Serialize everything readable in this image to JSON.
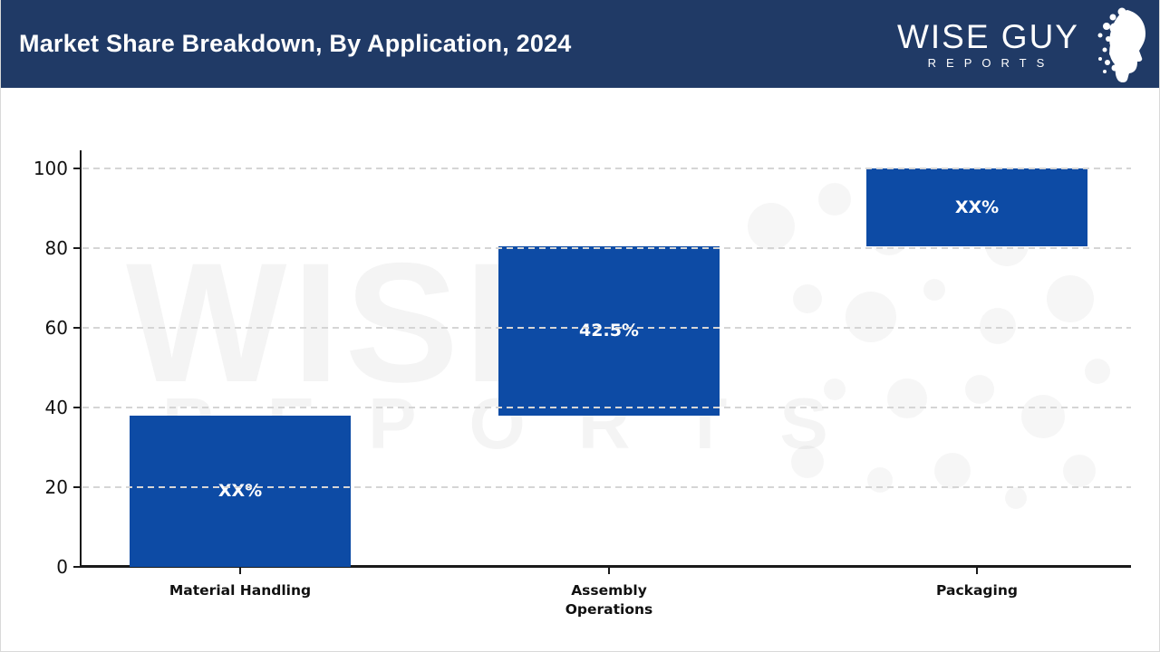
{
  "header": {
    "title": "Market Share Breakdown, By Application, 2024",
    "logo": {
      "primary": "WISE GUY",
      "secondary": "REPORTS"
    },
    "bg_color": "#203a66"
  },
  "watermark": {
    "primary": "WISE",
    "secondary": "REPORTS"
  },
  "chart_data": {
    "type": "bar",
    "subtype": "floating-waterfall",
    "title": "Market Share Breakdown, By Application, 2024",
    "categories": [
      "Material Handling",
      "Assembly\nOperations",
      "Packaging"
    ],
    "segments": [
      {
        "category": "Material Handling",
        "start": 0,
        "end": 38,
        "value": 38,
        "value_label": "XX%"
      },
      {
        "category": "Assembly Operations",
        "start": 38,
        "end": 80.5,
        "value": 42.5,
        "value_label": "42.5%"
      },
      {
        "category": "Packaging",
        "start": 80.5,
        "end": 100,
        "value": 19.5,
        "value_label": "XX%"
      }
    ],
    "xlabel": "",
    "ylabel": "",
    "ylim": [
      0,
      105
    ],
    "yticks": [
      0,
      20,
      40,
      60,
      80,
      100
    ],
    "grid": "horizontal-dashed-above-bars",
    "legend": "none",
    "bar_color": "#0d4ba5",
    "bar_label_color": "#ffffff",
    "axis_color": "#1a1a1a",
    "grid_color": "#d5d5d5"
  },
  "colors": {
    "header_bg": "#203a66",
    "bar": "#0d4ba5",
    "grid": "#d5d5d5",
    "watermark": "rgba(0,0,0,0.04)",
    "page_border": "#d9d9d9"
  }
}
